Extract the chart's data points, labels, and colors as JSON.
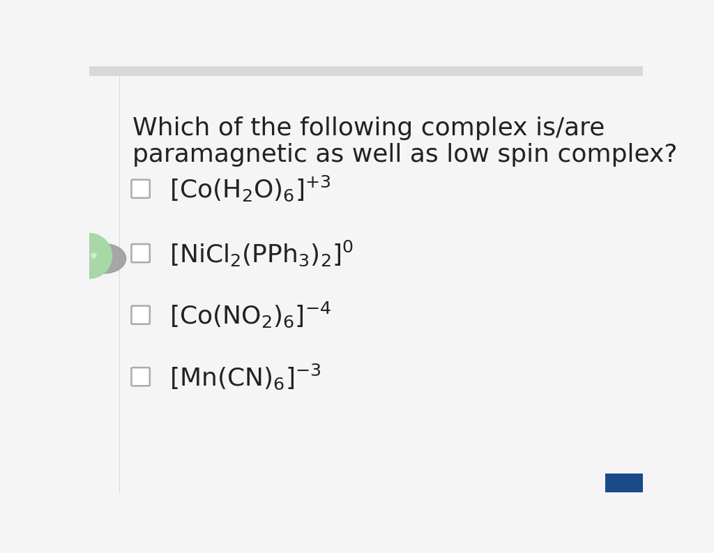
{
  "title_line1": "Which of the following complex is/are",
  "title_line2": "paramagnetic as well as low spin complex?",
  "bg_color": "#f5f5f5",
  "text_color": "#222222",
  "checkbox_color": "#aaaaaa",
  "title_fontsize": 26,
  "option_fontsize": 26,
  "left_bar_color": "#d8d8d8",
  "circle_outer_color": "#9aaa9a",
  "circle_inner_color": "#a8d8a8",
  "nav_dot_color": "#e8f8e8",
  "bottom_bar_color": "#1a4a8a",
  "top_bar_color": "#d8d8d8"
}
